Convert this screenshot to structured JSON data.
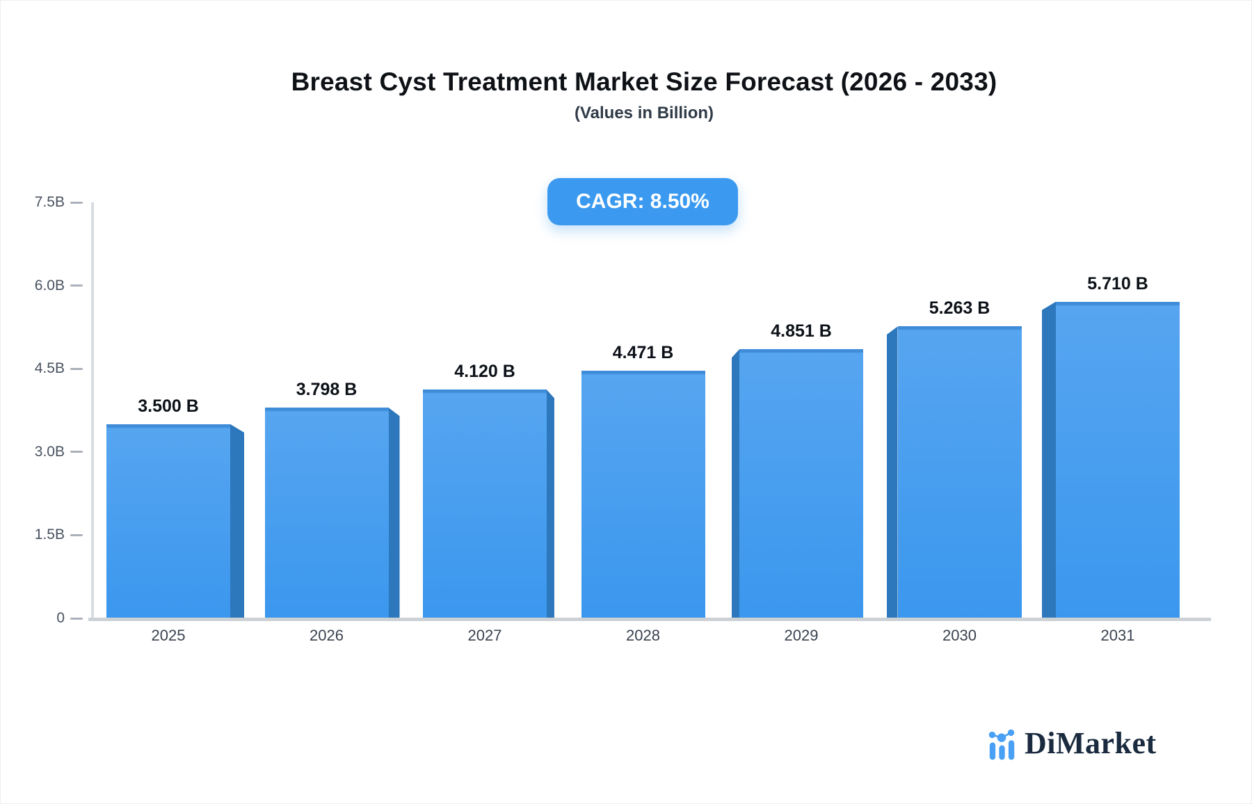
{
  "title": "Breast Cyst Treatment Market Size Forecast (2026 - 2033)",
  "subtitle": "(Values in Billion)",
  "badge": {
    "label": "CAGR: 8.50%",
    "color": "#3b9af0"
  },
  "brand": {
    "name": "DiMarket",
    "icon": "bar-chart-logo-icon",
    "icon_color": "#4aa0f5",
    "text_color": "#1b2b3f"
  },
  "colors": {
    "bar_face_top": "#56a5f0",
    "bar_face_bottom": "#3b97ee",
    "bar_top_edge": "#3f8cd9",
    "bar_side_face": "#2d77bc",
    "axis_line": "#d8dce1",
    "baseline": "#ccd1d6",
    "tick": "#a9b1b9",
    "tick_text": "#49525f",
    "year_text": "#39424f",
    "value_text": "#0c1118"
  },
  "chart_data": {
    "type": "bar",
    "title": "Breast Cyst Treatment Market Size Forecast (2026 - 2033)",
    "subtitle": "(Values in Billion)",
    "categories": [
      "2025",
      "2026",
      "2027",
      "2028",
      "2029",
      "2030",
      "2031"
    ],
    "values": [
      3.5,
      3.798,
      4.12,
      4.471,
      4.851,
      5.263,
      5.71
    ],
    "value_labels": [
      "3.500 B",
      "3.798 B",
      "4.120 B",
      "4.471 B",
      "4.851 B",
      "5.263 B",
      "5.710 B"
    ],
    "y_ticks": [
      {
        "label": "7.5B",
        "value": 7.5
      },
      {
        "label": "6.0B",
        "value": 6.0
      },
      {
        "label": "4.5B",
        "value": 4.5
      },
      {
        "label": "3.0B",
        "value": 3.0
      },
      {
        "label": "1.5B",
        "value": 1.5
      },
      {
        "label": "0",
        "value": 0
      }
    ],
    "ylim": [
      0,
      7.5
    ],
    "xlabel": "",
    "ylabel": "",
    "grid": false,
    "legend": "none",
    "style": "pseudo-3d bars, center perspective",
    "annotation": "CAGR: 8.50%"
  }
}
